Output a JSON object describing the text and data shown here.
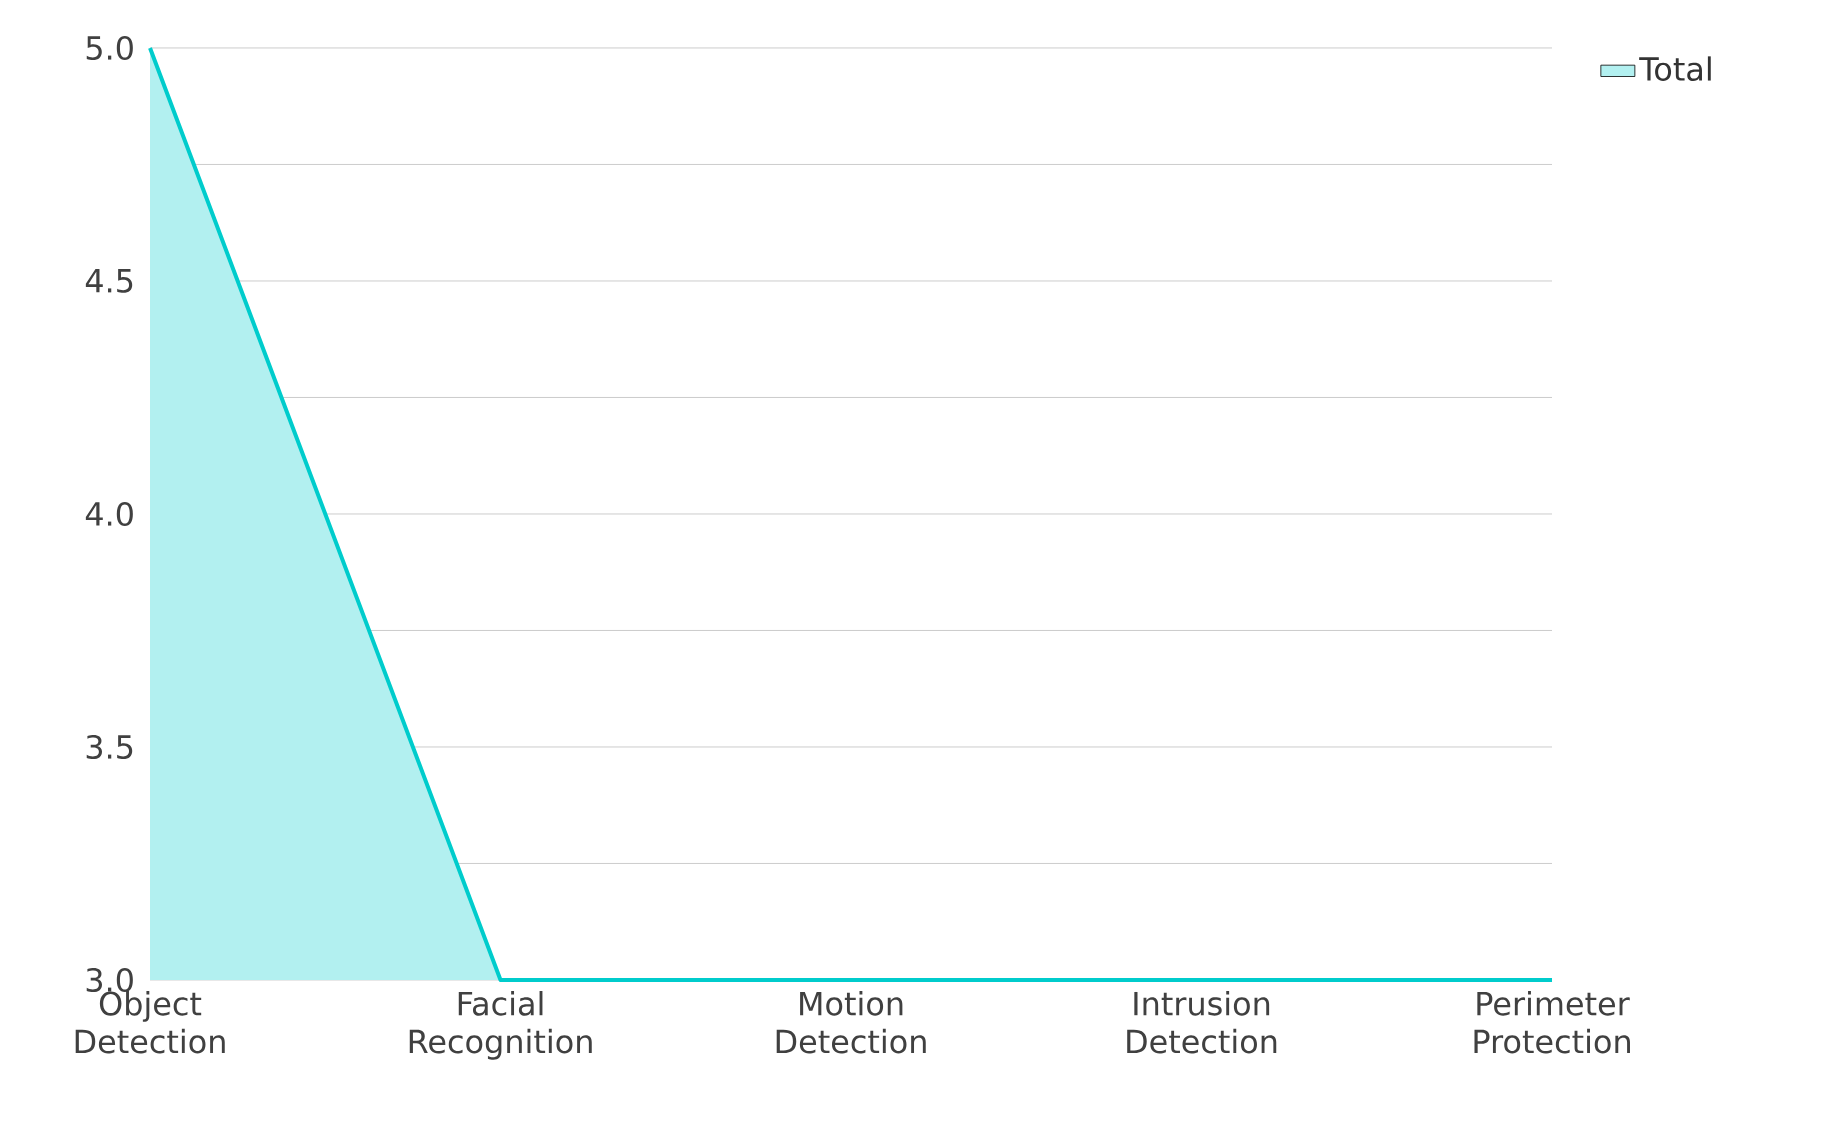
{
  "chart_data": {
    "type": "area",
    "categories": [
      "Object Detection",
      "Facial Recognition",
      "Motion Detection",
      "Intrusion Detection",
      "Perimeter Protection"
    ],
    "series": [
      {
        "name": "Total",
        "color": "#00cccc",
        "values": [
          5,
          3,
          3,
          3,
          3
        ]
      }
    ],
    "ylim": [
      3,
      5
    ],
    "yticks": [
      {
        "value": 3,
        "label": "3.0"
      },
      {
        "value": 3.25,
        "label": null
      },
      {
        "value": 3.5,
        "label": "3.5"
      },
      {
        "value": 3.75,
        "label": null
      },
      {
        "value": 4,
        "label": "4.0"
      },
      {
        "value": 4.25,
        "label": null
      },
      {
        "value": 4.5,
        "label": "4.5"
      },
      {
        "value": 4.75,
        "label": null
      },
      {
        "value": 5,
        "label": "5.0"
      }
    ],
    "grid": "y",
    "legend": "top right",
    "marker": "none",
    "line_style": "solid"
  }
}
